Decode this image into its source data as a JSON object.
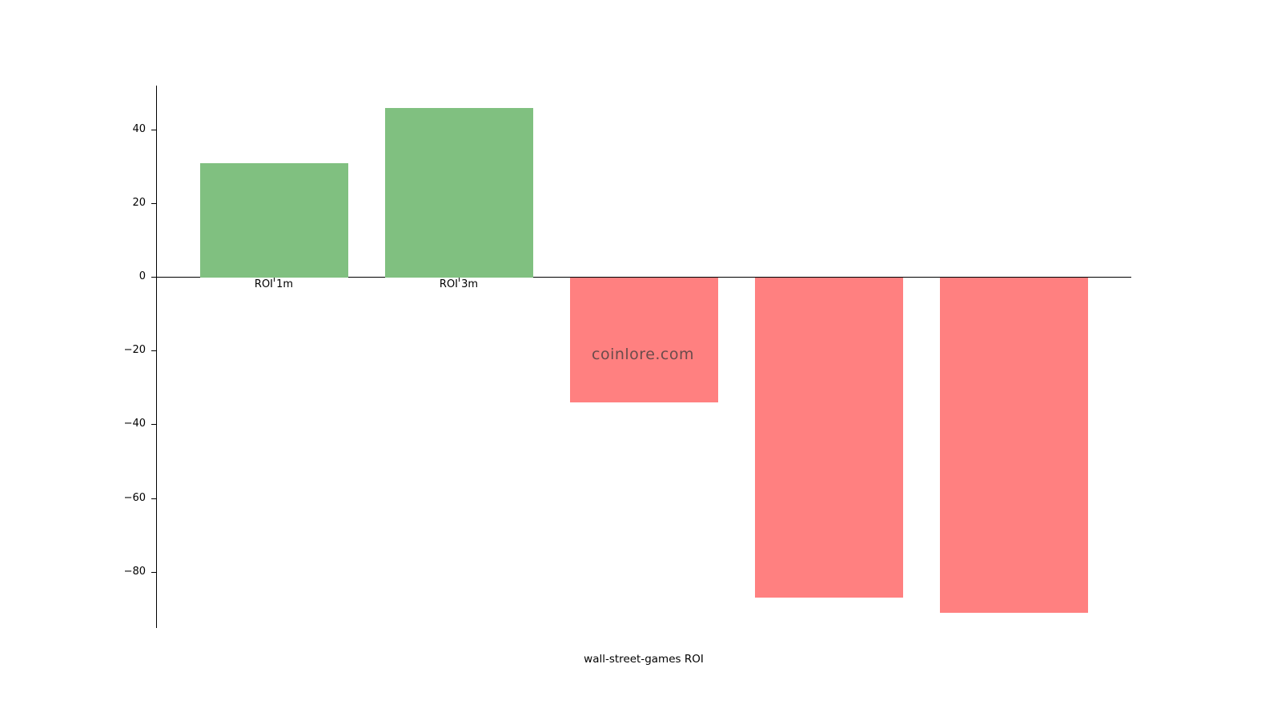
{
  "chart_data": {
    "type": "bar",
    "title": "wall-street-games ROI",
    "watermark": "coinlore.com",
    "categories": [
      "ROI 1m",
      "ROI 3m",
      "",
      "",
      ""
    ],
    "values": [
      31,
      46,
      -34,
      -87,
      -91
    ],
    "bar_colors": [
      "#80c080",
      "#80c080",
      "#ff8080",
      "#ff8080",
      "#ff8080"
    ],
    "positive_color": "#80c080",
    "negative_color": "#ff8080",
    "yticks": [
      40,
      20,
      0,
      -20,
      -40,
      -60,
      -80
    ],
    "ylim": [
      -95.3,
      52
    ],
    "xlabel": "",
    "ylabel": "",
    "grid": false,
    "legend": null,
    "axis_color": "#000000",
    "watermark_color": "#6a4b4b"
  }
}
